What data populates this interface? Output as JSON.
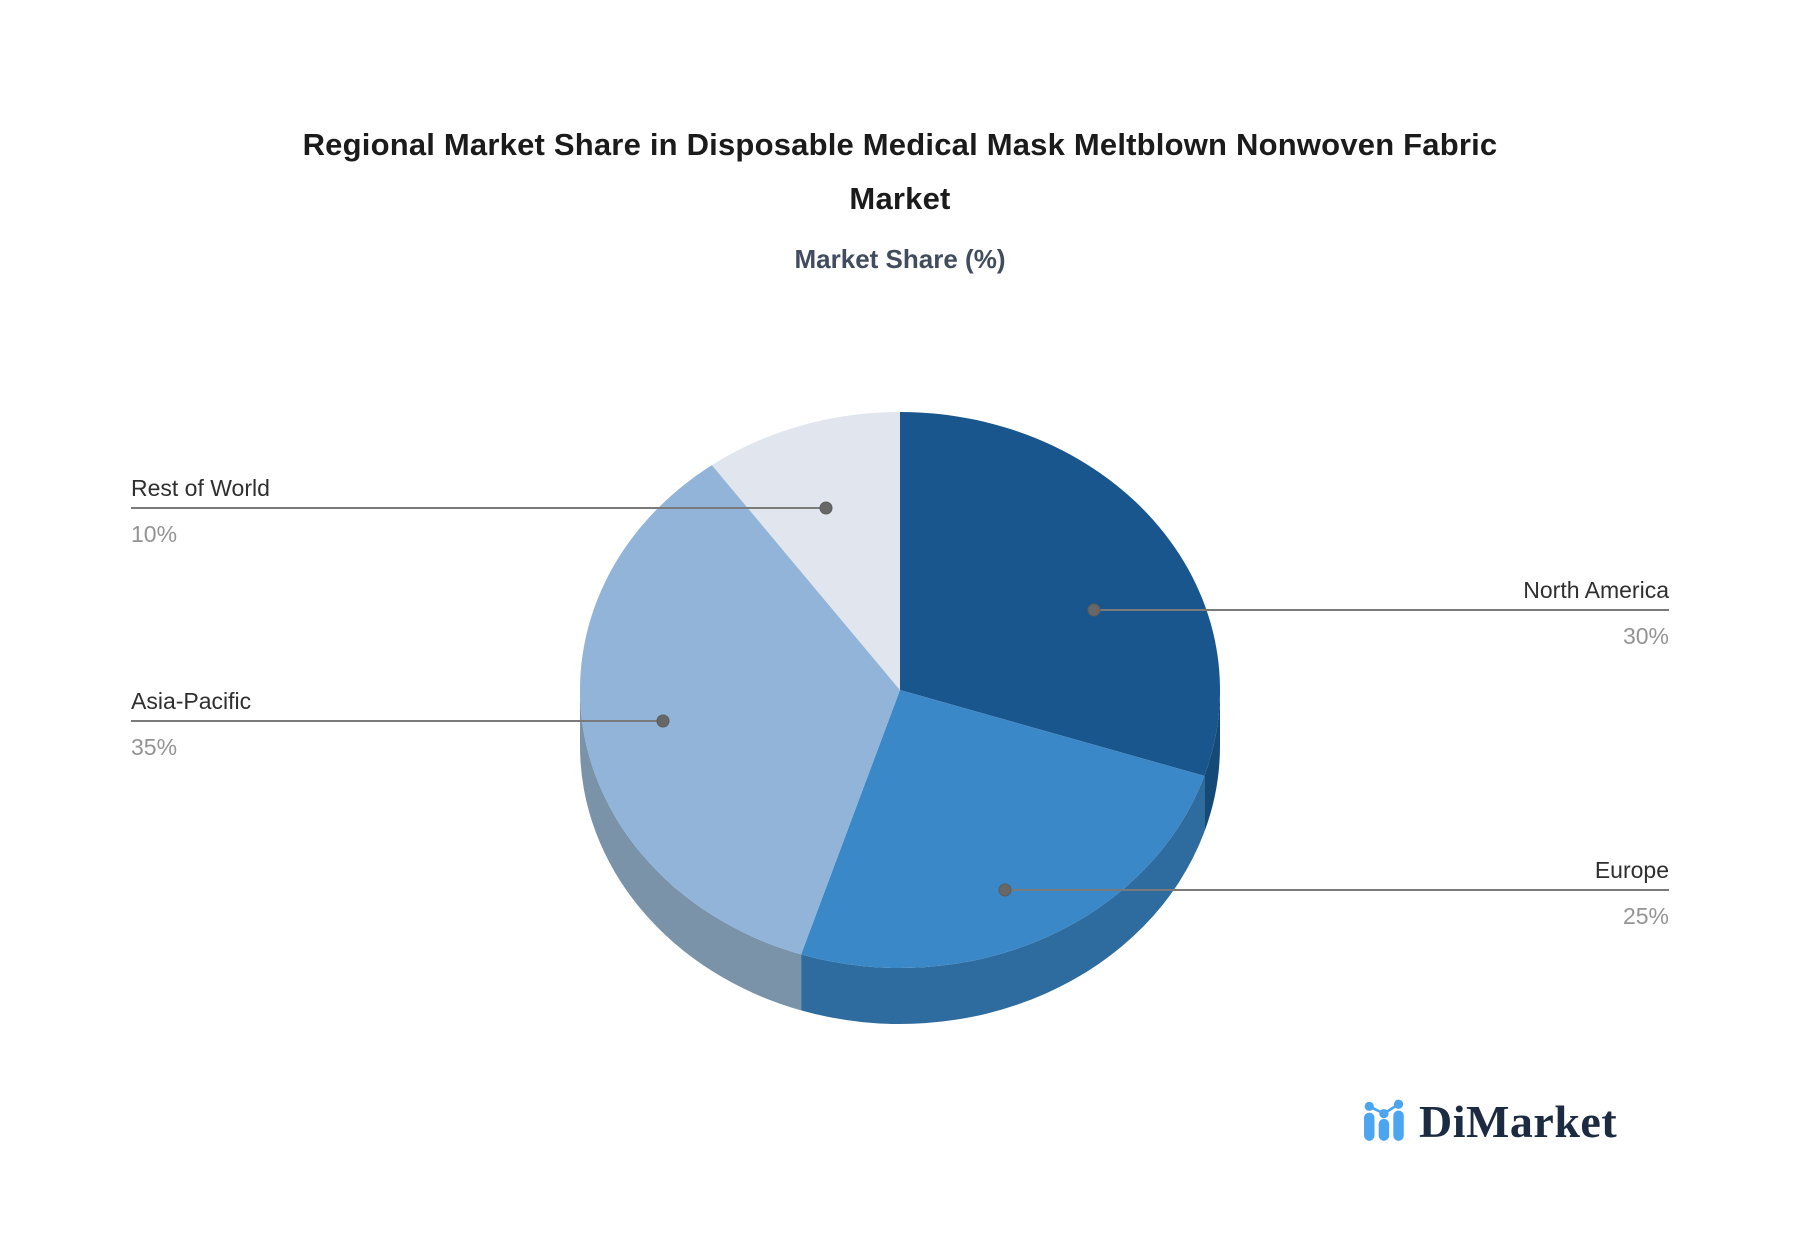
{
  "header": {
    "title_line1": "Regional Market Share in Disposable Medical Mask Meltblown Nonwoven Fabric",
    "title_line2": "Market",
    "subtitle": "Market Share (%)"
  },
  "chart_data": {
    "type": "pie",
    "style": "3d",
    "title": "Regional Market Share in Disposable Medical Mask Meltblown Nonwoven Fabric Market",
    "subtitle": "Market Share (%)",
    "unit": "%",
    "direction": "clockwise",
    "start_angle_deg": 0,
    "legend_position": "none",
    "categories": [
      "North America",
      "Europe",
      "Asia-Pacific",
      "Rest of World"
    ],
    "values": [
      30,
      25,
      35,
      10
    ],
    "slice_colors": [
      "#19568D",
      "#3B88C8",
      "#92B4D8",
      "#E0E5EE"
    ],
    "slice_side_colors": [
      "#134A78",
      "#2E6B9E",
      "#7A93A9",
      "#B8C2D4"
    ],
    "labels": [
      {
        "name": "North America",
        "pct": "30%"
      },
      {
        "name": "Europe",
        "pct": "25%"
      },
      {
        "name": "Asia-Pacific",
        "pct": "35%"
      },
      {
        "name": "Rest of World",
        "pct": "10%"
      }
    ],
    "label_text_color": "#2f2f2f",
    "label_pct_color": "#949494",
    "connector_color": "#7a7a7a"
  },
  "logo": {
    "text": "DiMarket",
    "icon": "bar-chart-logo-icon",
    "icon_color": "#4BA5F0",
    "text_color": "#1c2b42"
  }
}
